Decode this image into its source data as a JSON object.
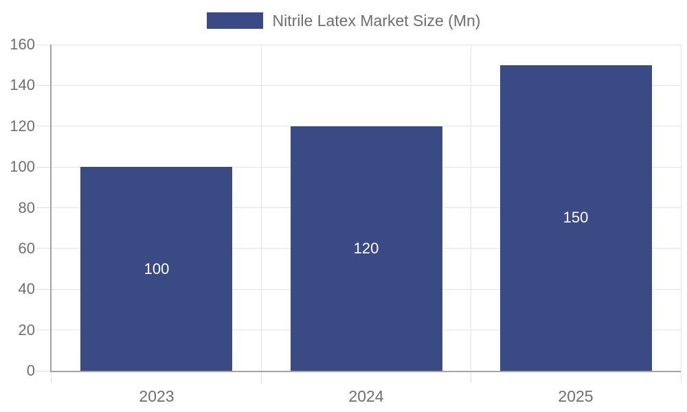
{
  "legend": {
    "label": "Nitrile Latex Market Size (Mn)"
  },
  "chart_data": {
    "type": "bar",
    "title": "Nitrile Latex Market Size (Mn)",
    "categories": [
      "2023",
      "2024",
      "2025"
    ],
    "values": [
      100,
      120,
      150
    ],
    "bar_labels": [
      "100",
      "120",
      "150"
    ],
    "xlabel": "",
    "ylabel": "",
    "ylim": [
      0,
      160
    ],
    "ytick_step": 20,
    "ytick_labels": [
      "0",
      "20",
      "40",
      "60",
      "80",
      "100",
      "120",
      "140",
      "160"
    ],
    "grid": true,
    "legend_position": "top",
    "colors": {
      "bar": "#3a4a85",
      "bar_label": "#ffffff",
      "grid": "#e3e3e3",
      "tick": "#e0e0e0",
      "axis": "#a3a3a3",
      "tick_text": "#6e6e6e",
      "legend_text": "#6e6e6e",
      "background": "#ffffff"
    }
  }
}
